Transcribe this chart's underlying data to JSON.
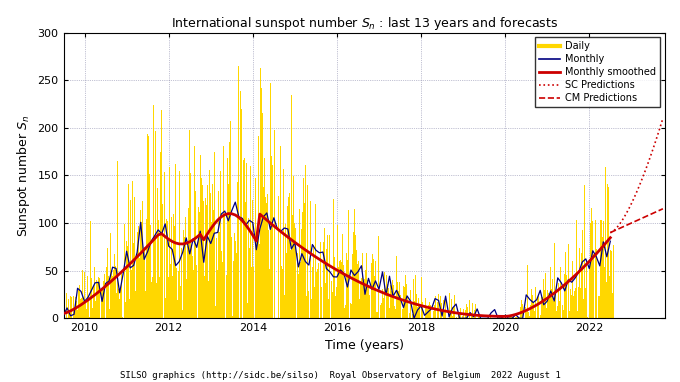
{
  "title": "International sunspot number $S_{n}$ : last 13 years and forecasts",
  "xlabel": "Time (years)",
  "ylabel": "Sunspot number $S_{n}$",
  "footer": "SILSO graphics (http://sidc.be/silso)  Royal Observatory of Belgium  2022 August 1",
  "xlim": [
    2009.5,
    2023.8
  ],
  "ylim": [
    0,
    300
  ],
  "yticks": [
    0,
    50,
    100,
    150,
    200,
    250,
    300
  ],
  "xticks": [
    2010,
    2012,
    2014,
    2016,
    2018,
    2020,
    2022
  ],
  "colors": {
    "daily": "#FFD700",
    "monthly": "#000080",
    "smoothed": "#CC0000",
    "sc_pred": "#CC0000",
    "cm_pred": "#CC0000",
    "background": "#FFFFFF",
    "grid": "#8888AA"
  },
  "legend": [
    "Daily",
    "Monthly",
    "Monthly smoothed",
    "SC Predictions",
    "CM Predictions"
  ]
}
